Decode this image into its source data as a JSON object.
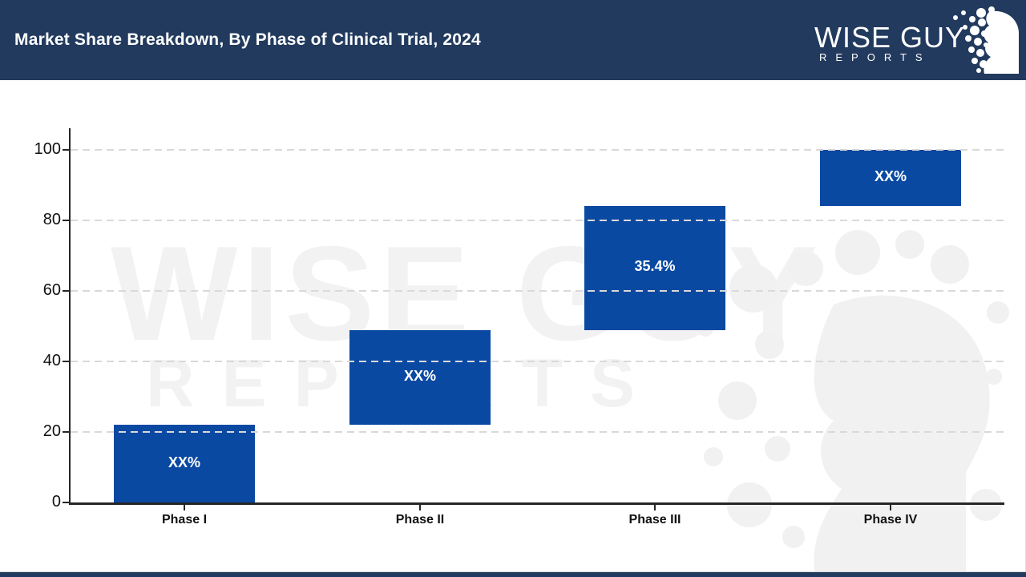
{
  "header": {
    "title": "Market Share Breakdown, By Phase of Clinical Trial, 2024",
    "logo": {
      "line1": "WISE GUY",
      "line2": "REPORTS"
    }
  },
  "watermark": {
    "line1": "WISE GUY",
    "line2": "REPORTS"
  },
  "colors": {
    "header_bg": "#223a5e",
    "bar_blue": "#0a49a2",
    "axis": "#262626",
    "gridline": "#d9d9d9",
    "bar_label": "#ffffff",
    "watermark": "#f2f2f2"
  },
  "chart_data": {
    "type": "bar",
    "subtype": "waterfall",
    "title": "Market Share Breakdown, By Phase of Clinical Trial, 2024",
    "categories": [
      "Phase I",
      "Phase II",
      "Phase III",
      "Phase IV"
    ],
    "bars": [
      {
        "category": "Phase I",
        "start": 0,
        "end": 22,
        "label": "XX%"
      },
      {
        "category": "Phase II",
        "start": 22,
        "end": 48.8,
        "label": "XX%"
      },
      {
        "category": "Phase III",
        "start": 48.8,
        "end": 84.2,
        "label": "35.4%"
      },
      {
        "category": "Phase IV",
        "start": 84.2,
        "end": 100,
        "label": "XX%"
      }
    ],
    "yticks": [
      0,
      20,
      40,
      60,
      80,
      100
    ],
    "ylim": [
      0,
      105
    ],
    "xlabel": "",
    "ylabel": "",
    "grid": "horizontal-dashed-over-bars",
    "legend": "none"
  }
}
